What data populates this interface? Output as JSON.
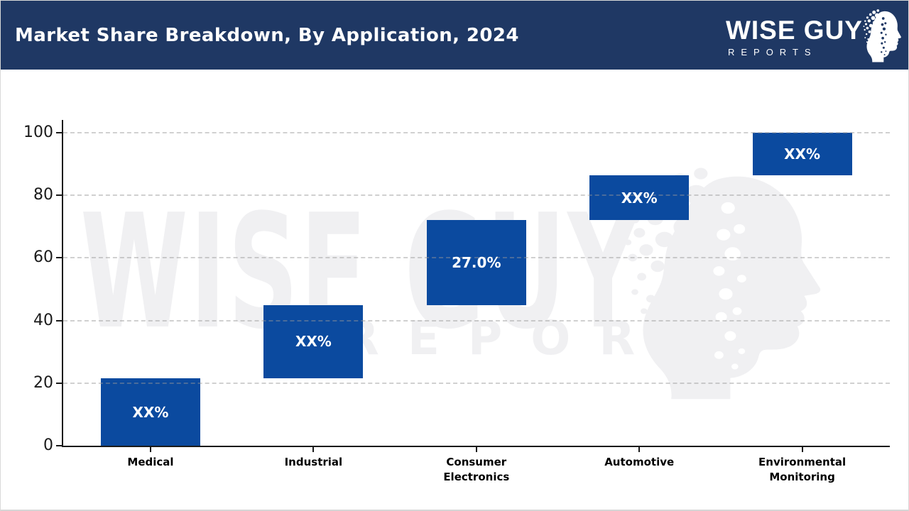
{
  "header": {
    "title": "Market Share Breakdown, By Application, 2024",
    "brand": {
      "line1": "WISE GUY",
      "line2": "REPORTS"
    }
  },
  "watermark": {
    "line1": "WISE GUY",
    "line2": "REPORTS"
  },
  "chart_data": {
    "type": "bar",
    "subtype": "floating-waterfall",
    "title": "Market Share Breakdown, By Application, 2024",
    "categories": [
      "Medical",
      "Industrial",
      "Consumer Electronics",
      "Automotive",
      "Environmental Monitoring"
    ],
    "bars": [
      {
        "category": "Medical",
        "start": 0,
        "end": 21.5,
        "label": "XX%"
      },
      {
        "category": "Industrial",
        "start": 21.5,
        "end": 45,
        "label": "XX%"
      },
      {
        "category": "Consumer Electronics",
        "start": 45,
        "end": 72,
        "label": "27.0%"
      },
      {
        "category": "Automotive",
        "start": 72,
        "end": 86.5,
        "label": "XX%"
      },
      {
        "category": "Environmental Monitoring",
        "start": 86.5,
        "end": 100,
        "label": "XX%"
      }
    ],
    "yticks": [
      0,
      20,
      40,
      60,
      80,
      100
    ],
    "ylim": [
      0,
      104
    ],
    "xlabel": "",
    "ylabel": "",
    "grid": "horizontal-dashed",
    "legend": "none",
    "bar_color": "#0B4A9F",
    "bar_label_color": "#FFFFFF",
    "header_color": "#1F3864"
  }
}
